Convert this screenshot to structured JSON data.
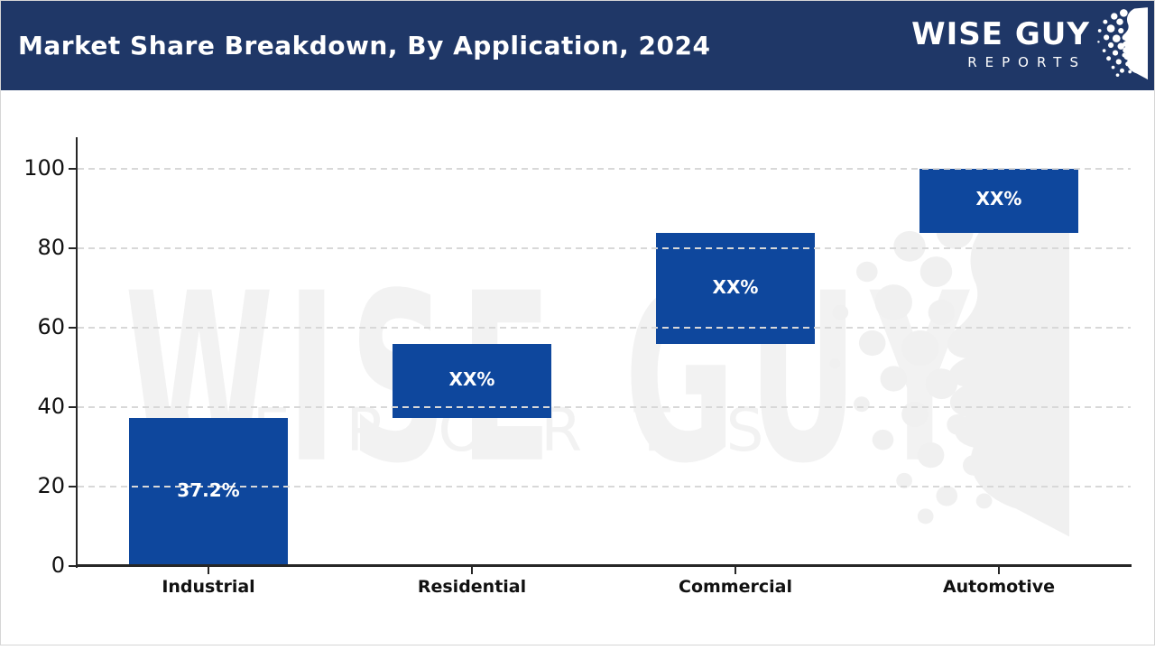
{
  "page": {
    "background": "#ffffff",
    "border_color": "#d6d6d6"
  },
  "header": {
    "background": "#1f3767",
    "title": "Market Share Breakdown, By Application, 2024",
    "logo": {
      "wordmark": "WISE GUY",
      "subtext": "REPORTS"
    }
  },
  "watermark": {
    "wordmark": "WISE GUY",
    "subtext": "REPORTS"
  },
  "chart_data": {
    "type": "bar",
    "subtype": "waterfall-floating",
    "title": "Market Share Breakdown, By Application, 2024",
    "categories": [
      "Industrial",
      "Residential",
      "Commercial",
      "Automotive"
    ],
    "segments": [
      {
        "category": "Industrial",
        "start": 0,
        "end": 37.2,
        "label": "37.2%"
      },
      {
        "category": "Residential",
        "start": 37.2,
        "end": 55.8,
        "label": "XX%"
      },
      {
        "category": "Commercial",
        "start": 55.8,
        "end": 83.9,
        "label": "XX%"
      },
      {
        "category": "Automotive",
        "start": 83.9,
        "end": 100,
        "label": "XX%"
      }
    ],
    "yticks": [
      0,
      20,
      40,
      60,
      80,
      100
    ],
    "ylim": [
      0,
      100
    ],
    "bar_color": "#0e479d",
    "grid": {
      "axis": "y",
      "style": "dashed",
      "color": "#d8d8d8"
    },
    "legend": null,
    "axis_color": "#262626",
    "tick_label_color": "#111111"
  }
}
